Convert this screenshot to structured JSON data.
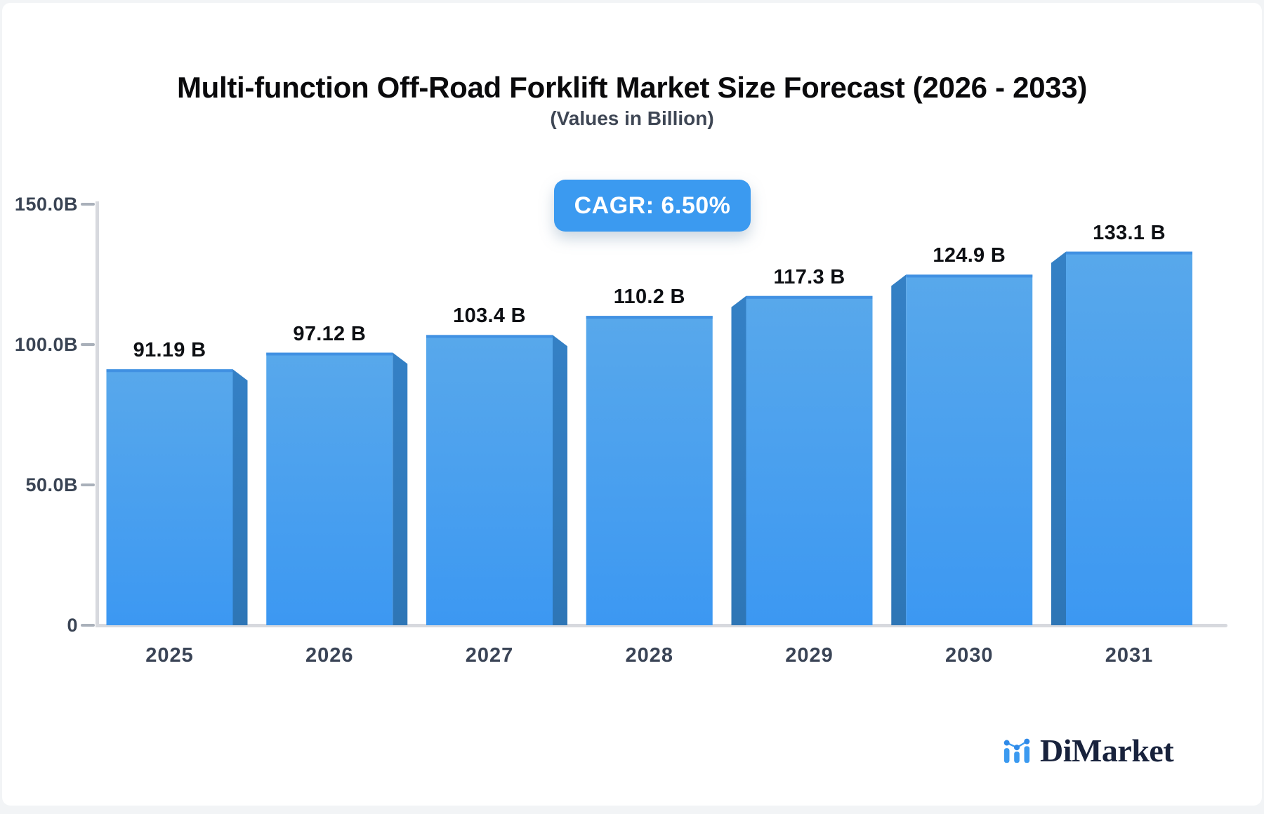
{
  "header": {
    "title": "Multi-function Off-Road Forklift Market Size Forecast (2026 - 2033)",
    "subtitle": "(Values in Billion)",
    "cagr_label": "CAGR: 6.50%"
  },
  "branding": {
    "name": "DiMarket",
    "icon": "bar-line-chart-logo"
  },
  "colors": {
    "badge_bg": "#3b9af0",
    "bar_face_top": "#58a8eb",
    "bar_face_bottom": "#3c98f2",
    "bar_face_top_edge": "#4191e2",
    "bar_side_top": "#3480c5",
    "bar_side_bottom": "#2e76b6",
    "axis_line": "#d7d9de",
    "tick_dash": "#a9b0ba",
    "axis_label": "#3a4454",
    "value_label": "#0d0f13",
    "brand_blue": "#3b9af0",
    "brand_navy": "#18223c"
  },
  "chart_data": {
    "type": "bar",
    "title": "Multi-function Off-Road Forklift Market Size Forecast (2026 - 2033)",
    "subtitle": "(Values in Billion)",
    "cagr": "6.50%",
    "unit": "Billion",
    "categories": [
      "2025",
      "2026",
      "2027",
      "2028",
      "2029",
      "2030",
      "2031"
    ],
    "values": [
      91.19,
      97.12,
      103.4,
      110.2,
      117.3,
      124.9,
      133.1
    ],
    "value_labels": [
      "91.19 B",
      "97.12 B",
      "103.4 B",
      "110.2 B",
      "117.3 B",
      "124.9 B",
      "133.1 B"
    ],
    "xlabel": "",
    "ylabel": "",
    "ylim": [
      0,
      150
    ],
    "yticks": [
      {
        "value": 0,
        "label": "0"
      },
      {
        "value": 50,
        "label": "50.0B"
      },
      {
        "value": 100,
        "label": "100.0B"
      },
      {
        "value": 150,
        "label": "150.0B"
      }
    ],
    "grid": false,
    "legend": false,
    "style": "3d-bars-beveled-toward-center"
  }
}
